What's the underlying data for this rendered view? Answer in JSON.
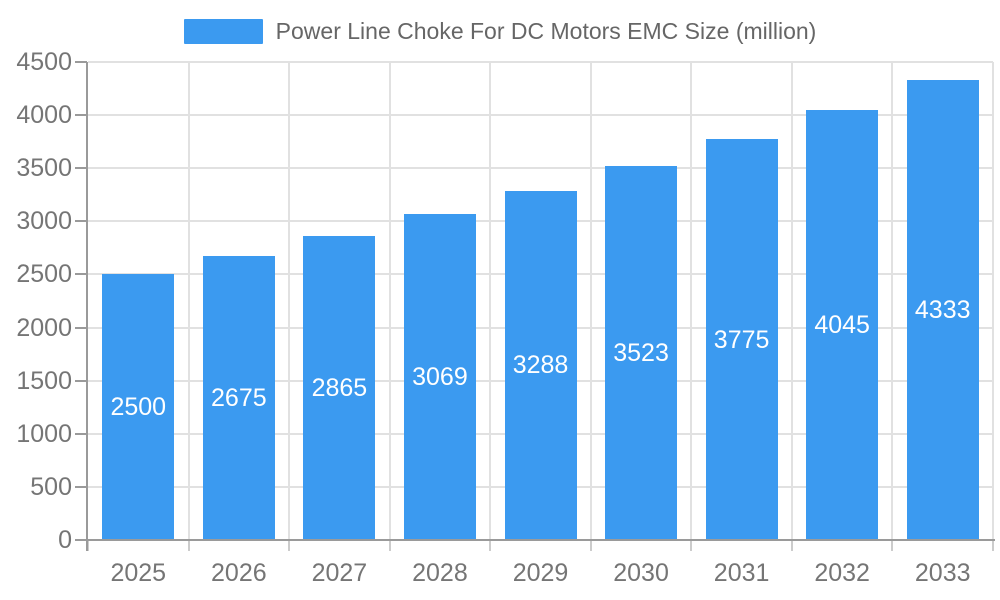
{
  "legend": {
    "label": "Power Line Choke For DC Motors EMC Size (million)"
  },
  "chart_data": {
    "type": "bar",
    "title": "Power Line Choke For DC Motors EMC Size (million)",
    "series_name": "Power Line Choke For DC Motors EMC Size (million)",
    "categories": [
      "2025",
      "2026",
      "2027",
      "2028",
      "2029",
      "2030",
      "2031",
      "2032",
      "2033"
    ],
    "values": [
      2500,
      2675,
      2865,
      3069,
      3288,
      3523,
      3775,
      4045,
      4333
    ],
    "xlabel": "",
    "ylabel": "",
    "ylim": [
      0,
      4500
    ],
    "ytick_step": 500,
    "yticks": [
      0,
      500,
      1000,
      1500,
      2000,
      2500,
      3000,
      3500,
      4000,
      4500
    ],
    "grid": true,
    "legend_position": "top",
    "value_labels": "inside-center-white"
  },
  "colors": {
    "bar": "#3B9AF0",
    "grid_line": "#e1e1e1",
    "axis_line": "#9a9a9a",
    "x_tick": "#cccccc",
    "axis_text": "#757575",
    "title_text": "#666666",
    "bar_label": "#ffffff",
    "background": "#ffffff"
  }
}
